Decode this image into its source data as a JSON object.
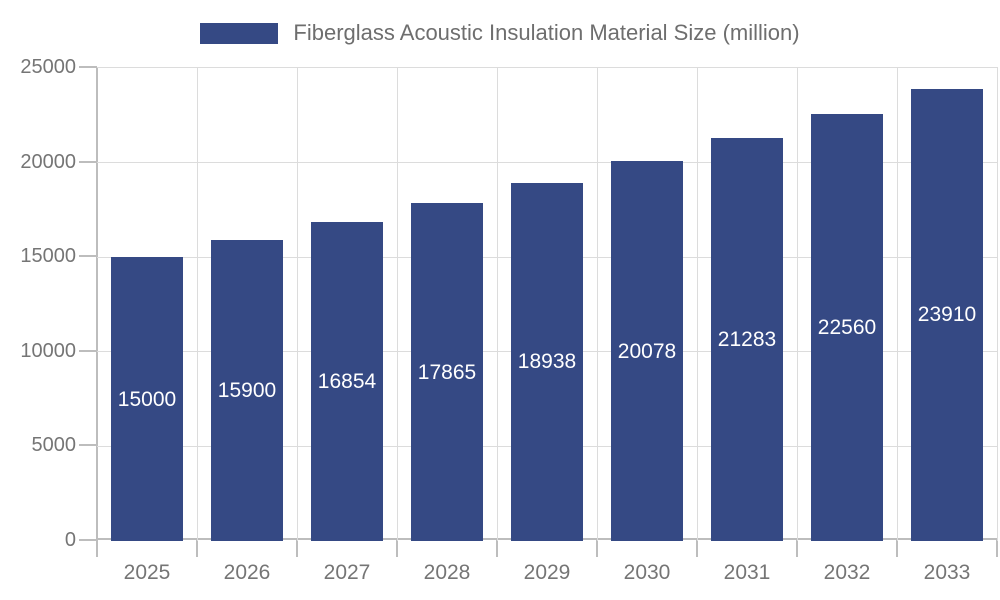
{
  "chart_data": {
    "type": "bar",
    "title": "Fiberglass Acoustic Insulation Material Size (million)",
    "legend": [
      {
        "label": "Fiberglass Acoustic Insulation Material Size (million)",
        "color": "#354984"
      }
    ],
    "legend_position": "top-center",
    "categories": [
      "2025",
      "2026",
      "2027",
      "2028",
      "2029",
      "2030",
      "2031",
      "2032",
      "2033"
    ],
    "series": [
      {
        "name": "Fiberglass Acoustic Insulation Material Size (million)",
        "values": [
          15000,
          15900,
          16854,
          17865,
          18938,
          20078,
          21283,
          22560,
          23910
        ]
      }
    ],
    "values": [
      15000,
      15900,
      16854,
      17865,
      18938,
      20078,
      21283,
      22560,
      23910
    ],
    "value_labels_shown": true,
    "xlabel": "",
    "ylabel": "",
    "ylim": [
      0,
      25000
    ],
    "yticks": [
      0,
      5000,
      10000,
      15000,
      20000,
      25000
    ],
    "grid": true,
    "colors": {
      "bar": "#354984",
      "grid_line": "#dcdcdc",
      "axis_line": "#bdbdbd",
      "tick_label": "#757575",
      "legend_text": "#6e6e6e",
      "value_label": "#ffffff",
      "background": "#ffffff"
    }
  }
}
